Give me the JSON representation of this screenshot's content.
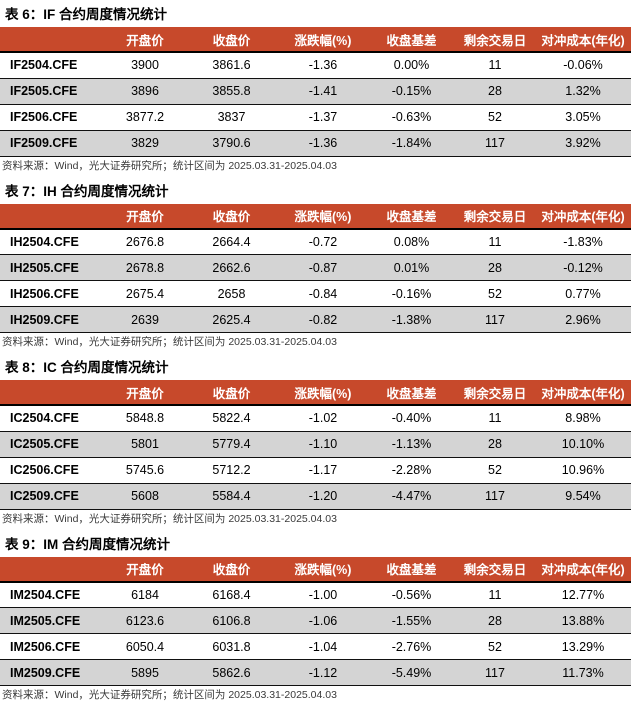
{
  "colors": {
    "header_bg": "#C7492B",
    "header_text": "#FFFFFF",
    "stripe_bg": "#D4D4D4",
    "rule": "#000000"
  },
  "columns": [
    "",
    "开盘价",
    "收盘价",
    "涨跌幅(%)",
    "收盘基差",
    "剩余交易日",
    "对冲成本(年化)"
  ],
  "source_note": "资料来源：Wind，光大证券研究所；统计区间为 2025.03.31-2025.04.03",
  "tables": [
    {
      "title": "表 6：IF 合约周度情况统计",
      "rows": [
        [
          "IF2504.CFE",
          "3900",
          "3861.6",
          "-1.36",
          "0.00%",
          "11",
          "-0.06%"
        ],
        [
          "IF2505.CFE",
          "3896",
          "3855.8",
          "-1.41",
          "-0.15%",
          "28",
          "1.32%"
        ],
        [
          "IF2506.CFE",
          "3877.2",
          "3837",
          "-1.37",
          "-0.63%",
          "52",
          "3.05%"
        ],
        [
          "IF2509.CFE",
          "3829",
          "3790.6",
          "-1.36",
          "-1.84%",
          "117",
          "3.92%"
        ]
      ]
    },
    {
      "title": "表 7：IH 合约周度情况统计",
      "rows": [
        [
          "IH2504.CFE",
          "2676.8",
          "2664.4",
          "-0.72",
          "0.08%",
          "11",
          "-1.83%"
        ],
        [
          "IH2505.CFE",
          "2678.8",
          "2662.6",
          "-0.87",
          "0.01%",
          "28",
          "-0.12%"
        ],
        [
          "IH2506.CFE",
          "2675.4",
          "2658",
          "-0.84",
          "-0.16%",
          "52",
          "0.77%"
        ],
        [
          "IH2509.CFE",
          "2639",
          "2625.4",
          "-0.82",
          "-1.38%",
          "117",
          "2.96%"
        ]
      ]
    },
    {
      "title": "表 8：IC 合约周度情况统计",
      "rows": [
        [
          "IC2504.CFE",
          "5848.8",
          "5822.4",
          "-1.02",
          "-0.40%",
          "11",
          "8.98%"
        ],
        [
          "IC2505.CFE",
          "5801",
          "5779.4",
          "-1.10",
          "-1.13%",
          "28",
          "10.10%"
        ],
        [
          "IC2506.CFE",
          "5745.6",
          "5712.2",
          "-1.17",
          "-2.28%",
          "52",
          "10.96%"
        ],
        [
          "IC2509.CFE",
          "5608",
          "5584.4",
          "-1.20",
          "-4.47%",
          "117",
          "9.54%"
        ]
      ]
    },
    {
      "title": "表 9：IM 合约周度情况统计",
      "rows": [
        [
          "IM2504.CFE",
          "6184",
          "6168.4",
          "-1.00",
          "-0.56%",
          "11",
          "12.77%"
        ],
        [
          "IM2505.CFE",
          "6123.6",
          "6106.8",
          "-1.06",
          "-1.55%",
          "28",
          "13.88%"
        ],
        [
          "IM2506.CFE",
          "6050.4",
          "6031.8",
          "-1.04",
          "-2.76%",
          "52",
          "13.29%"
        ],
        [
          "IM2509.CFE",
          "5895",
          "5862.6",
          "-1.12",
          "-5.49%",
          "117",
          "11.73%"
        ]
      ]
    }
  ]
}
